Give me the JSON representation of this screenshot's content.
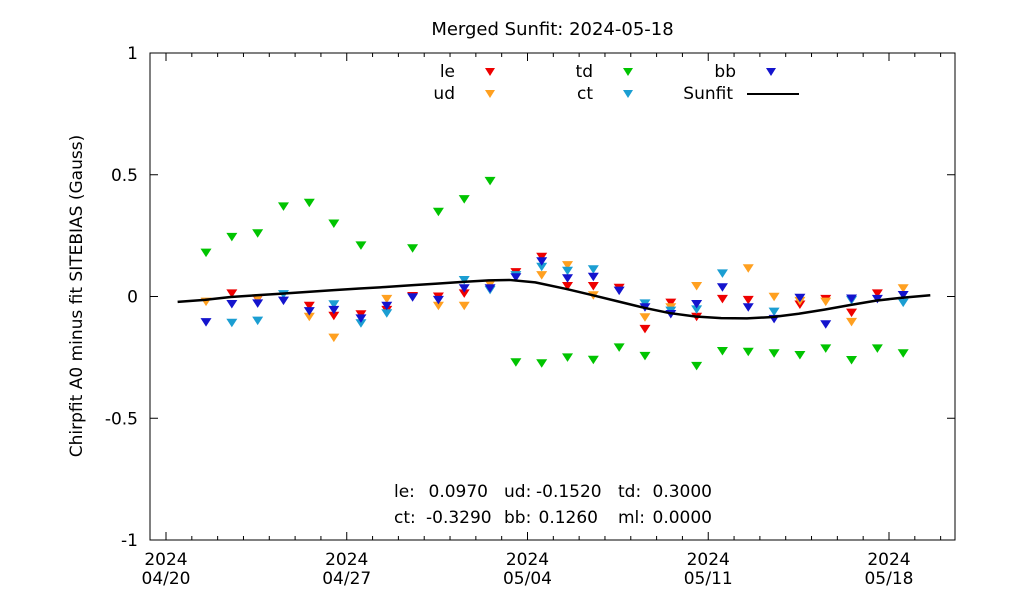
{
  "chart_data": {
    "type": "scatter",
    "title": "Merged Sunfit: 2024-05-18",
    "ylabel": "Chirpfit A0 minus fit SITEBIAS (Gauss)",
    "xlabel": "",
    "ylim": [
      -1,
      1
    ],
    "x_unit": "days since 2024-04-20",
    "xlim": [
      -0.62,
      30.53
    ],
    "grid": false,
    "legend_position": "top-center-inside",
    "y_ticks": [
      {
        "value": 1,
        "label": "1"
      },
      {
        "value": 0.5,
        "label": "0.5"
      },
      {
        "value": 0,
        "label": "0"
      },
      {
        "value": -0.5,
        "label": "-0.5"
      },
      {
        "value": -1,
        "label": "-1"
      }
    ],
    "x_major_ticks": [
      {
        "day": 0,
        "year": "2024",
        "date": "04/20"
      },
      {
        "day": 7,
        "year": "2024",
        "date": "04/27"
      },
      {
        "day": 14,
        "year": "2024",
        "date": "05/04"
      },
      {
        "day": 21,
        "year": "2024",
        "date": "05/11"
      },
      {
        "day": 28,
        "year": "2024",
        "date": "05/18"
      }
    ],
    "x_minor_tick_every_days": 1,
    "series": [
      {
        "name": "le",
        "marker": "triangle-down",
        "color": "#ee0000",
        "points": [
          [
            2.55,
            0.013
          ],
          [
            3.55,
            -0.01
          ],
          [
            5.55,
            -0.038
          ],
          [
            6.5,
            -0.079
          ],
          [
            7.55,
            -0.073
          ],
          [
            8.55,
            -0.055
          ],
          [
            9.55,
            0.002
          ],
          [
            10.55,
            0.0
          ],
          [
            11.55,
            0.013
          ],
          [
            13.55,
            0.1
          ],
          [
            14.55,
            0.163
          ],
          [
            15.55,
            0.043
          ],
          [
            16.55,
            0.043
          ],
          [
            17.55,
            0.036
          ],
          [
            18.55,
            -0.133
          ],
          [
            19.55,
            -0.025
          ],
          [
            20.55,
            -0.083
          ],
          [
            21.55,
            -0.01
          ],
          [
            22.55,
            -0.014
          ],
          [
            24.55,
            -0.033
          ],
          [
            25.55,
            -0.01
          ],
          [
            26.55,
            -0.066
          ],
          [
            27.55,
            0.013
          ]
        ]
      },
      {
        "name": "ud",
        "marker": "triangle-down",
        "color": "#ffa020",
        "points": [
          [
            1.55,
            -0.021
          ],
          [
            3.55,
            -0.007
          ],
          [
            5.55,
            -0.083
          ],
          [
            6.5,
            -0.169
          ],
          [
            8.55,
            -0.01
          ],
          [
            10.55,
            -0.038
          ],
          [
            11.55,
            -0.038
          ],
          [
            12.55,
            0.051
          ],
          [
            14.55,
            0.088
          ],
          [
            15.55,
            0.129
          ],
          [
            16.55,
            0.005
          ],
          [
            18.55,
            -0.085
          ],
          [
            19.55,
            -0.044
          ],
          [
            20.55,
            0.043
          ],
          [
            22.55,
            0.116
          ],
          [
            23.55,
            -0.001
          ],
          [
            24.55,
            -0.018
          ],
          [
            25.55,
            -0.021
          ],
          [
            26.55,
            -0.104
          ],
          [
            28.55,
            0.034
          ]
        ]
      },
      {
        "name": "td",
        "marker": "triangle-down",
        "color": "#00c400",
        "points": [
          [
            1.55,
            0.18
          ],
          [
            2.55,
            0.245
          ],
          [
            3.55,
            0.26
          ],
          [
            4.55,
            0.37
          ],
          [
            5.55,
            0.385
          ],
          [
            6.5,
            0.3
          ],
          [
            7.55,
            0.21
          ],
          [
            9.55,
            0.198
          ],
          [
            10.55,
            0.348
          ],
          [
            11.55,
            0.4
          ],
          [
            12.55,
            0.475
          ],
          [
            13.55,
            -0.27
          ],
          [
            14.55,
            -0.274
          ],
          [
            15.55,
            -0.25
          ],
          [
            16.55,
            -0.26
          ],
          [
            17.55,
            -0.209
          ],
          [
            18.55,
            -0.244
          ],
          [
            20.55,
            -0.285
          ],
          [
            21.55,
            -0.224
          ],
          [
            22.55,
            -0.227
          ],
          [
            23.55,
            -0.233
          ],
          [
            24.55,
            -0.24
          ],
          [
            25.55,
            -0.213
          ],
          [
            26.55,
            -0.261
          ],
          [
            27.55,
            -0.213
          ],
          [
            28.55,
            -0.233
          ]
        ]
      },
      {
        "name": "ct",
        "marker": "triangle-down",
        "color": "#1b9ed2",
        "points": [
          [
            2.55,
            -0.108
          ],
          [
            3.55,
            -0.099
          ],
          [
            4.55,
            0.01
          ],
          [
            6.5,
            -0.032
          ],
          [
            7.55,
            -0.11
          ],
          [
            8.55,
            -0.069
          ],
          [
            11.55,
            0.068
          ],
          [
            12.55,
            0.027
          ],
          [
            13.55,
            0.088
          ],
          [
            14.55,
            0.122
          ],
          [
            15.55,
            0.106
          ],
          [
            16.55,
            0.112
          ],
          [
            18.55,
            -0.028
          ],
          [
            19.55,
            -0.058
          ],
          [
            20.55,
            -0.053
          ],
          [
            21.55,
            0.095
          ],
          [
            23.55,
            -0.062
          ],
          [
            26.55,
            -0.015
          ],
          [
            28.55,
            -0.025
          ]
        ]
      },
      {
        "name": "bb",
        "marker": "triangle-down",
        "color": "#1414cd",
        "points": [
          [
            1.55,
            -0.105
          ],
          [
            2.55,
            -0.031
          ],
          [
            3.55,
            -0.028
          ],
          [
            4.55,
            -0.017
          ],
          [
            5.55,
            -0.06
          ],
          [
            6.5,
            -0.055
          ],
          [
            7.55,
            -0.09
          ],
          [
            8.55,
            -0.038
          ],
          [
            9.55,
            -0.003
          ],
          [
            10.55,
            -0.014
          ],
          [
            11.55,
            0.034
          ],
          [
            12.55,
            0.034
          ],
          [
            13.55,
            0.079
          ],
          [
            14.55,
            0.145
          ],
          [
            15.55,
            0.075
          ],
          [
            16.55,
            0.081
          ],
          [
            17.55,
            0.024
          ],
          [
            18.55,
            -0.044
          ],
          [
            19.55,
            -0.072
          ],
          [
            20.55,
            -0.031
          ],
          [
            21.55,
            0.038
          ],
          [
            22.55,
            -0.044
          ],
          [
            23.55,
            -0.092
          ],
          [
            24.55,
            -0.005
          ],
          [
            25.55,
            -0.114
          ],
          [
            26.55,
            -0.008
          ],
          [
            27.55,
            -0.01
          ],
          [
            28.55,
            0.006
          ]
        ]
      },
      {
        "name": "Sunfit",
        "type": "line",
        "color": "#000000",
        "points": [
          [
            0.45,
            -0.022
          ],
          [
            1.5,
            -0.014
          ],
          [
            2.5,
            -0.002
          ],
          [
            3.5,
            0.005
          ],
          [
            4.5,
            0.012
          ],
          [
            5.5,
            0.019
          ],
          [
            6.5,
            0.026
          ],
          [
            7.5,
            0.033
          ],
          [
            8.5,
            0.039
          ],
          [
            9.5,
            0.046
          ],
          [
            10.5,
            0.053
          ],
          [
            11.5,
            0.06
          ],
          [
            12.5,
            0.066
          ],
          [
            13.3,
            0.068
          ],
          [
            14.3,
            0.058
          ],
          [
            15.5,
            0.031
          ],
          [
            16.5,
            0.006
          ],
          [
            17.5,
            -0.02
          ],
          [
            18.5,
            -0.046
          ],
          [
            19.5,
            -0.068
          ],
          [
            20.5,
            -0.082
          ],
          [
            21.5,
            -0.089
          ],
          [
            22.5,
            -0.09
          ],
          [
            23.5,
            -0.084
          ],
          [
            24.5,
            -0.071
          ],
          [
            25.5,
            -0.054
          ],
          [
            26.5,
            -0.035
          ],
          [
            27.5,
            -0.017
          ],
          [
            28.5,
            -0.005
          ],
          [
            29.6,
            0.005
          ]
        ]
      }
    ],
    "annotations": {
      "rows": [
        [
          {
            "label": "le:",
            "value": "0.0970"
          },
          {
            "label": "ud:",
            "value": "-0.1520"
          },
          {
            "label": "td:",
            "value": "0.3000"
          }
        ],
        [
          {
            "label": "ct:",
            "value": "-0.3290"
          },
          {
            "label": "bb:",
            "value": "0.1260"
          },
          {
            "label": "ml:",
            "value": "0.0000"
          }
        ]
      ]
    }
  }
}
